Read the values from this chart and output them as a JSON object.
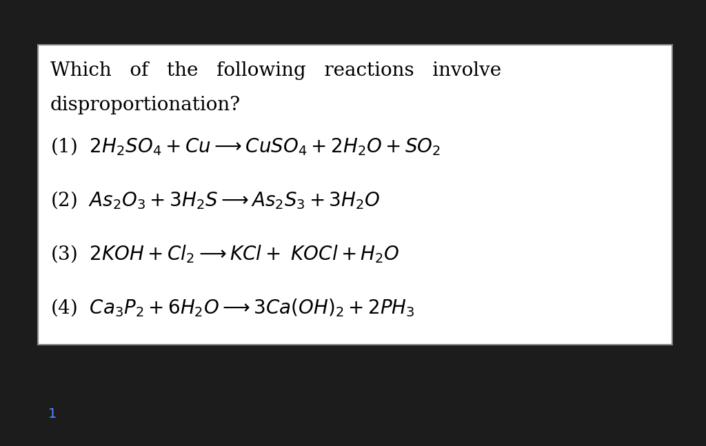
{
  "background_color": "#1c1c1c",
  "box_color": "#ffffff",
  "box_edge_color": "#888888",
  "text_color": "#000000",
  "title_line1": "Which   of   the   following   reactions   involve",
  "title_line2": "disproportionation?",
  "reactions": [
    "(1)  $2H_2SO_4 + Cu \\longrightarrow CuSO_4 + 2H_2O + SO_2$",
    "(2)  $As_2O_3 + 3H_2S \\longrightarrow As_2S_3 + 3H_2O$",
    "(3)  $2KOH + Cl_2 \\longrightarrow KCl +\\ KOCl + H_2O$",
    "(4)  $Ca_3P_2 + 6H_2O \\longrightarrow 3Ca(OH)_2 +2PH_3$"
  ],
  "footer_text": "1",
  "footer_color": "#5588ff",
  "font_size_title": 20,
  "font_size_reactions": 20,
  "font_size_footer": 14
}
